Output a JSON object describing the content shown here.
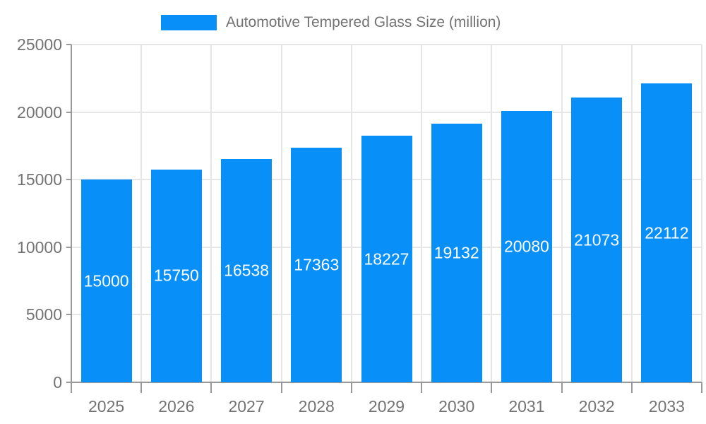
{
  "chart_data": {
    "type": "bar",
    "title": "Automotive Tempered Glass Size (million)",
    "legend_label": "Automotive Tempered Glass Size (million)",
    "legend_position": "top",
    "categories": [
      "2025",
      "2026",
      "2027",
      "2028",
      "2029",
      "2030",
      "2031",
      "2032",
      "2033"
    ],
    "series": [
      {
        "name": "Automotive Tempered Glass Size (million)",
        "values": [
          15000,
          15750,
          16538,
          17363,
          18227,
          19132,
          20080,
          21073,
          22112
        ]
      }
    ],
    "value_labels": [
      "15000",
      "15750",
      "16538",
      "17363",
      "18227",
      "19132",
      "20080",
      "21073",
      "22112"
    ],
    "xlabel": "",
    "ylabel": "",
    "ylim": [
      0,
      25000
    ],
    "yticks": [
      0,
      5000,
      10000,
      15000,
      20000,
      25000
    ],
    "ytick_labels": [
      "0",
      "5000",
      "10000",
      "15000",
      "20000",
      "25000"
    ],
    "grid": "both",
    "colors": {
      "bar": "#0990f8",
      "value_label": "#ffffff",
      "axis_line": "#999999",
      "tick": "#999999",
      "gridline": "#e6e6e6",
      "axis_text": "#737373",
      "legend_text": "#737373",
      "background": "#ffffff"
    }
  }
}
